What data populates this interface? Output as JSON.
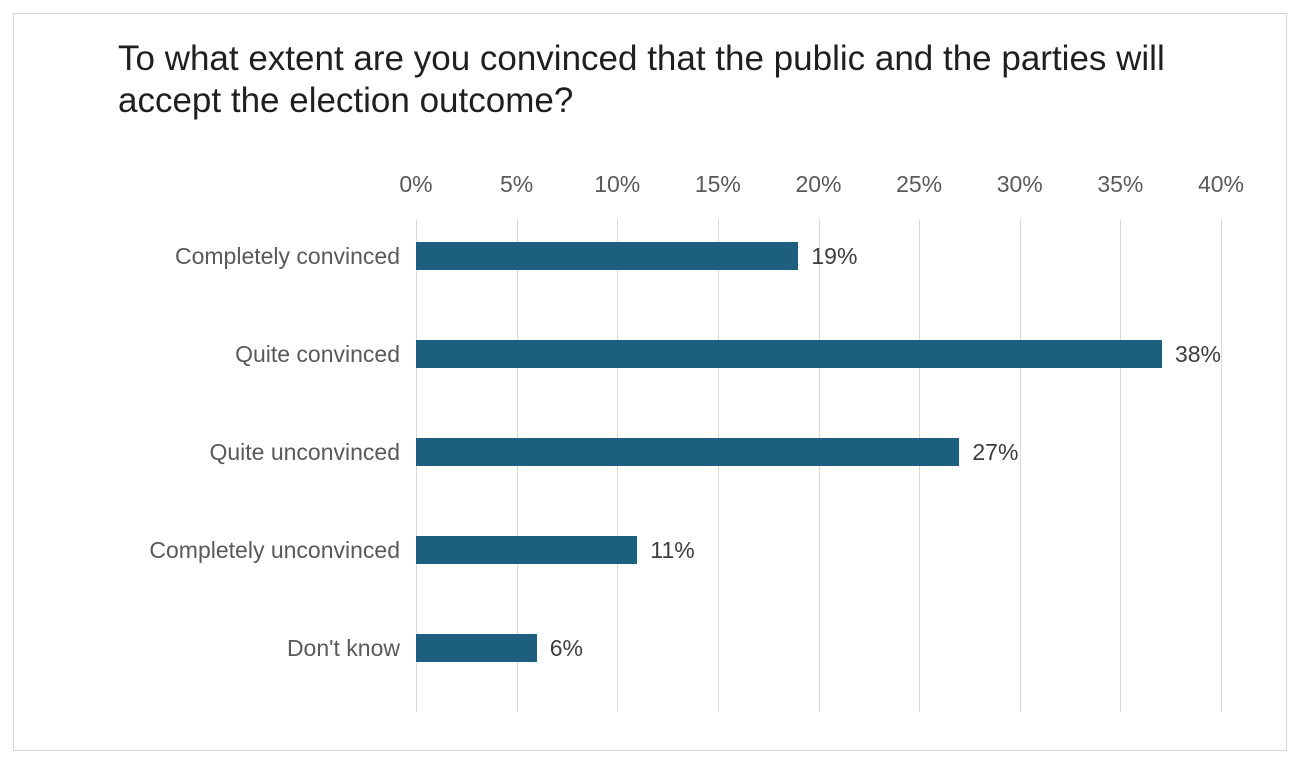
{
  "chart_data": {
    "type": "bar",
    "orientation": "horizontal",
    "title": "To what extent are you convinced that the public and the parties will accept the election outcome?",
    "categories": [
      "Completely convinced",
      "Quite convinced",
      "Quite unconvinced",
      "Completely unconvinced",
      "Don't know"
    ],
    "values": [
      19,
      38,
      27,
      11,
      6
    ],
    "data_labels": [
      "19%",
      "38%",
      "27%",
      "11%",
      "6%"
    ],
    "xlabel": "",
    "ylabel": "",
    "xlim": [
      0,
      40
    ],
    "xticks": [
      0,
      5,
      10,
      15,
      20,
      25,
      30,
      35,
      40
    ],
    "xtick_labels": [
      "0%",
      "5%",
      "10%",
      "15%",
      "20%",
      "25%",
      "30%",
      "35%",
      "40%"
    ],
    "axis_position": "top",
    "grid": "vertical",
    "legend": "none",
    "colors": {
      "bar": "#1d5f7e",
      "gridline": "#d9d9d9",
      "frame_border": "#d6d6d6",
      "title_text": "#1f1f1f",
      "axis_text": "#595959",
      "data_label_text": "#3d3d3d",
      "background": "#ffffff"
    }
  }
}
